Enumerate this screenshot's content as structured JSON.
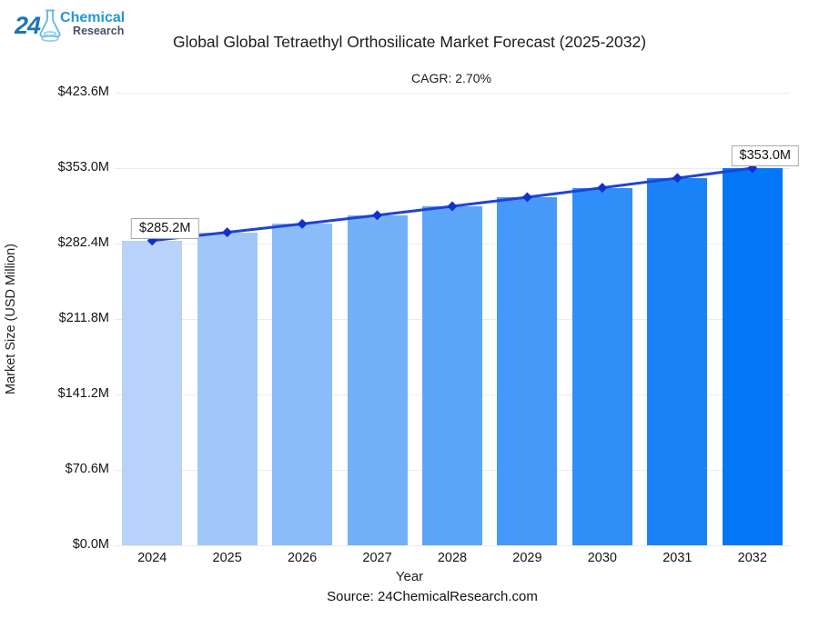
{
  "logo": {
    "number": "24",
    "word1": "Chemical",
    "word2": "Research",
    "flask_icon": "flask-icon",
    "colors": {
      "number": "#1b75bb",
      "word1": "#2397d4",
      "word2": "#47506b",
      "flask": "#63b6e2"
    }
  },
  "header": {
    "title": "Global Global Tetraethyl Orthosilicate Market Forecast (2025-2032)",
    "subtitle": "CAGR: 2.70%"
  },
  "chart_data": {
    "type": "bar",
    "overlay": "line",
    "title": "Global Global Tetraethyl Orthosilicate Market Forecast (2025-2032)",
    "subtitle": "CAGR: 2.70%",
    "xlabel": "Year",
    "ylabel": "Market Size (USD Million)",
    "categories": [
      "2024",
      "2025",
      "2026",
      "2027",
      "2028",
      "2029",
      "2030",
      "2031",
      "2032"
    ],
    "values": [
      285.2,
      292.9,
      300.8,
      308.9,
      317.3,
      325.8,
      334.6,
      343.7,
      353.0
    ],
    "ylim": [
      0,
      423.6
    ],
    "ytick_values": [
      0,
      70.6,
      141.2,
      211.8,
      282.4,
      353.0,
      423.6
    ],
    "ytick_labels": [
      "$0.0M",
      "$70.6M",
      "$141.2M",
      "$211.8M",
      "$282.4M",
      "$353.0M",
      "$423.6M"
    ],
    "grid": true,
    "legend": "none",
    "bar_colors": [
      "#b8d2f9",
      "#a1c7f9",
      "#8bbbf8",
      "#74b0f8",
      "#5da5f8",
      "#4699f8",
      "#308ef8",
      "#1982f7",
      "#0277f7"
    ],
    "line_color": "#1e43d6",
    "marker_color": "#1330cb",
    "gridline_color": "#ebebeb",
    "annotations": [
      {
        "index": 0,
        "text": "$285.2M"
      },
      {
        "index": 8,
        "text": "$353.0M"
      }
    ]
  },
  "footer": {
    "source": "Source: 24ChemicalResearch.com"
  }
}
